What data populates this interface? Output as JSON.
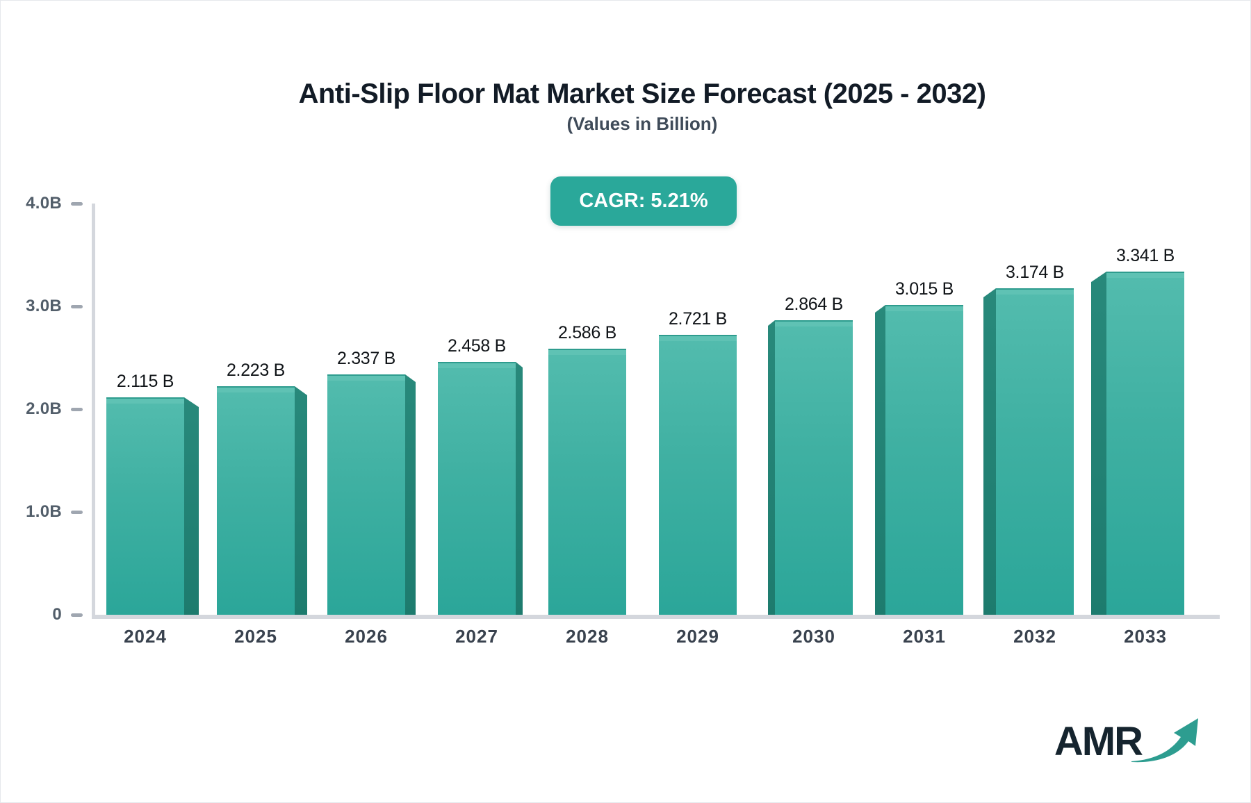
{
  "title": "Anti-Slip Floor Mat Market Size Forecast (2025 - 2032)",
  "subtitle": "(Values in Billion)",
  "badge": {
    "label": "CAGR: 5.21%"
  },
  "logo": {
    "text": "AMR",
    "arrow_icon": "growth-arrow"
  },
  "colors": {
    "accent_teal": "#2AA89A",
    "bar_face_top": "#53BCAE",
    "bar_face_bottom": "#2BA699",
    "bar_side_dark": "#1D7B6E",
    "bar_top_face": "#5FC2B4",
    "axis_line": "#D4D7DD",
    "tick_dash": "#9FA6B0",
    "title_text": "#121B26",
    "subtitle_text": "#3F4B59",
    "y_label_text": "#525E6A",
    "x_label_text": "#39424E",
    "value_label_text": "#101418",
    "badge_text": "#FFFFFF",
    "logo_text": "#15242E",
    "logo_arrow": "#2D9D90"
  },
  "chart_data": {
    "type": "bar",
    "style": "3d-perspective-bars",
    "title": "Anti-Slip Floor Mat Market Size Forecast (2025 - 2032)",
    "subtitle": "(Values in Billion)",
    "categories": [
      "2024",
      "2025",
      "2026",
      "2027",
      "2028",
      "2029",
      "2030",
      "2031",
      "2032",
      "2033"
    ],
    "values": [
      2.115,
      2.223,
      2.337,
      2.458,
      2.586,
      2.721,
      2.864,
      3.015,
      3.174,
      3.341
    ],
    "value_labels": [
      "2.115 B",
      "2.223 B",
      "2.337 B",
      "2.458 B",
      "2.586 B",
      "2.721 B",
      "2.864 B",
      "3.015 B",
      "3.174 B",
      "3.341 B"
    ],
    "y_axis": {
      "tick_labels": [
        "4.0B",
        "3.0B",
        "2.0B",
        "1.0B",
        "0"
      ],
      "tick_values": [
        4.0,
        3.0,
        2.0,
        1.0,
        0
      ],
      "min": 0,
      "max": 4.0
    },
    "xlabel": "",
    "ylabel": "",
    "grid": false,
    "legend": null,
    "annotations": [
      "CAGR: 5.21%"
    ]
  }
}
